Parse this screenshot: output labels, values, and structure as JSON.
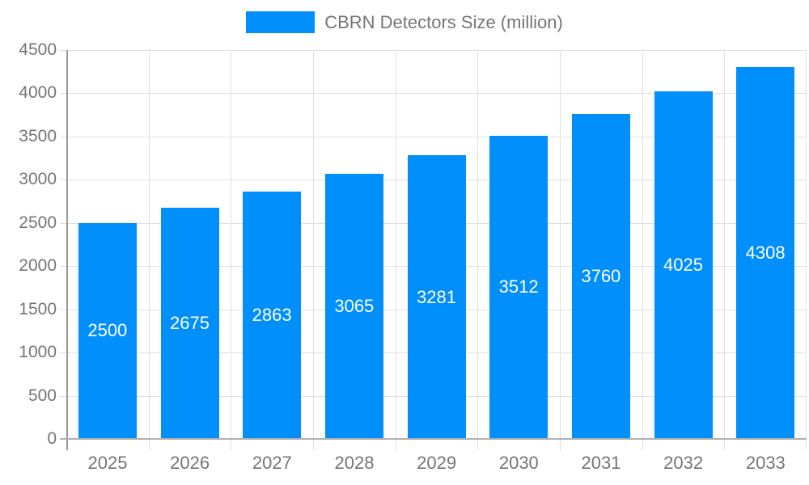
{
  "legend": {
    "label": "CBRN Detectors Size (million)",
    "swatch_color": "#008FFB"
  },
  "chart_data": {
    "type": "bar",
    "title": "CBRN Detectors Size (million)",
    "categories": [
      "2025",
      "2026",
      "2027",
      "2028",
      "2029",
      "2030",
      "2031",
      "2032",
      "2033"
    ],
    "series": [
      {
        "name": "CBRN Detectors Size (million)",
        "values": [
          2500,
          2675,
          2863,
          3065,
          3281,
          3512,
          3760,
          4025,
          4308
        ]
      }
    ],
    "xlabel": "",
    "ylabel": "",
    "ylim": [
      0,
      4500
    ],
    "ytick_step": 500,
    "y_tick_labels": [
      "0",
      "500",
      "1000",
      "1500",
      "2000",
      "2500",
      "3000",
      "3500",
      "4000",
      "4500"
    ],
    "grid": "on",
    "legend_position": "top",
    "value_labels": "inside-center",
    "colors": {
      "bar": "#008FFB",
      "grid_line": "#e0e0e0",
      "baseline": "#b0b0b0",
      "axis_line": "#999999",
      "tick_text": "#757575",
      "value_text": "#ffffff",
      "background": "#ffffff"
    }
  }
}
